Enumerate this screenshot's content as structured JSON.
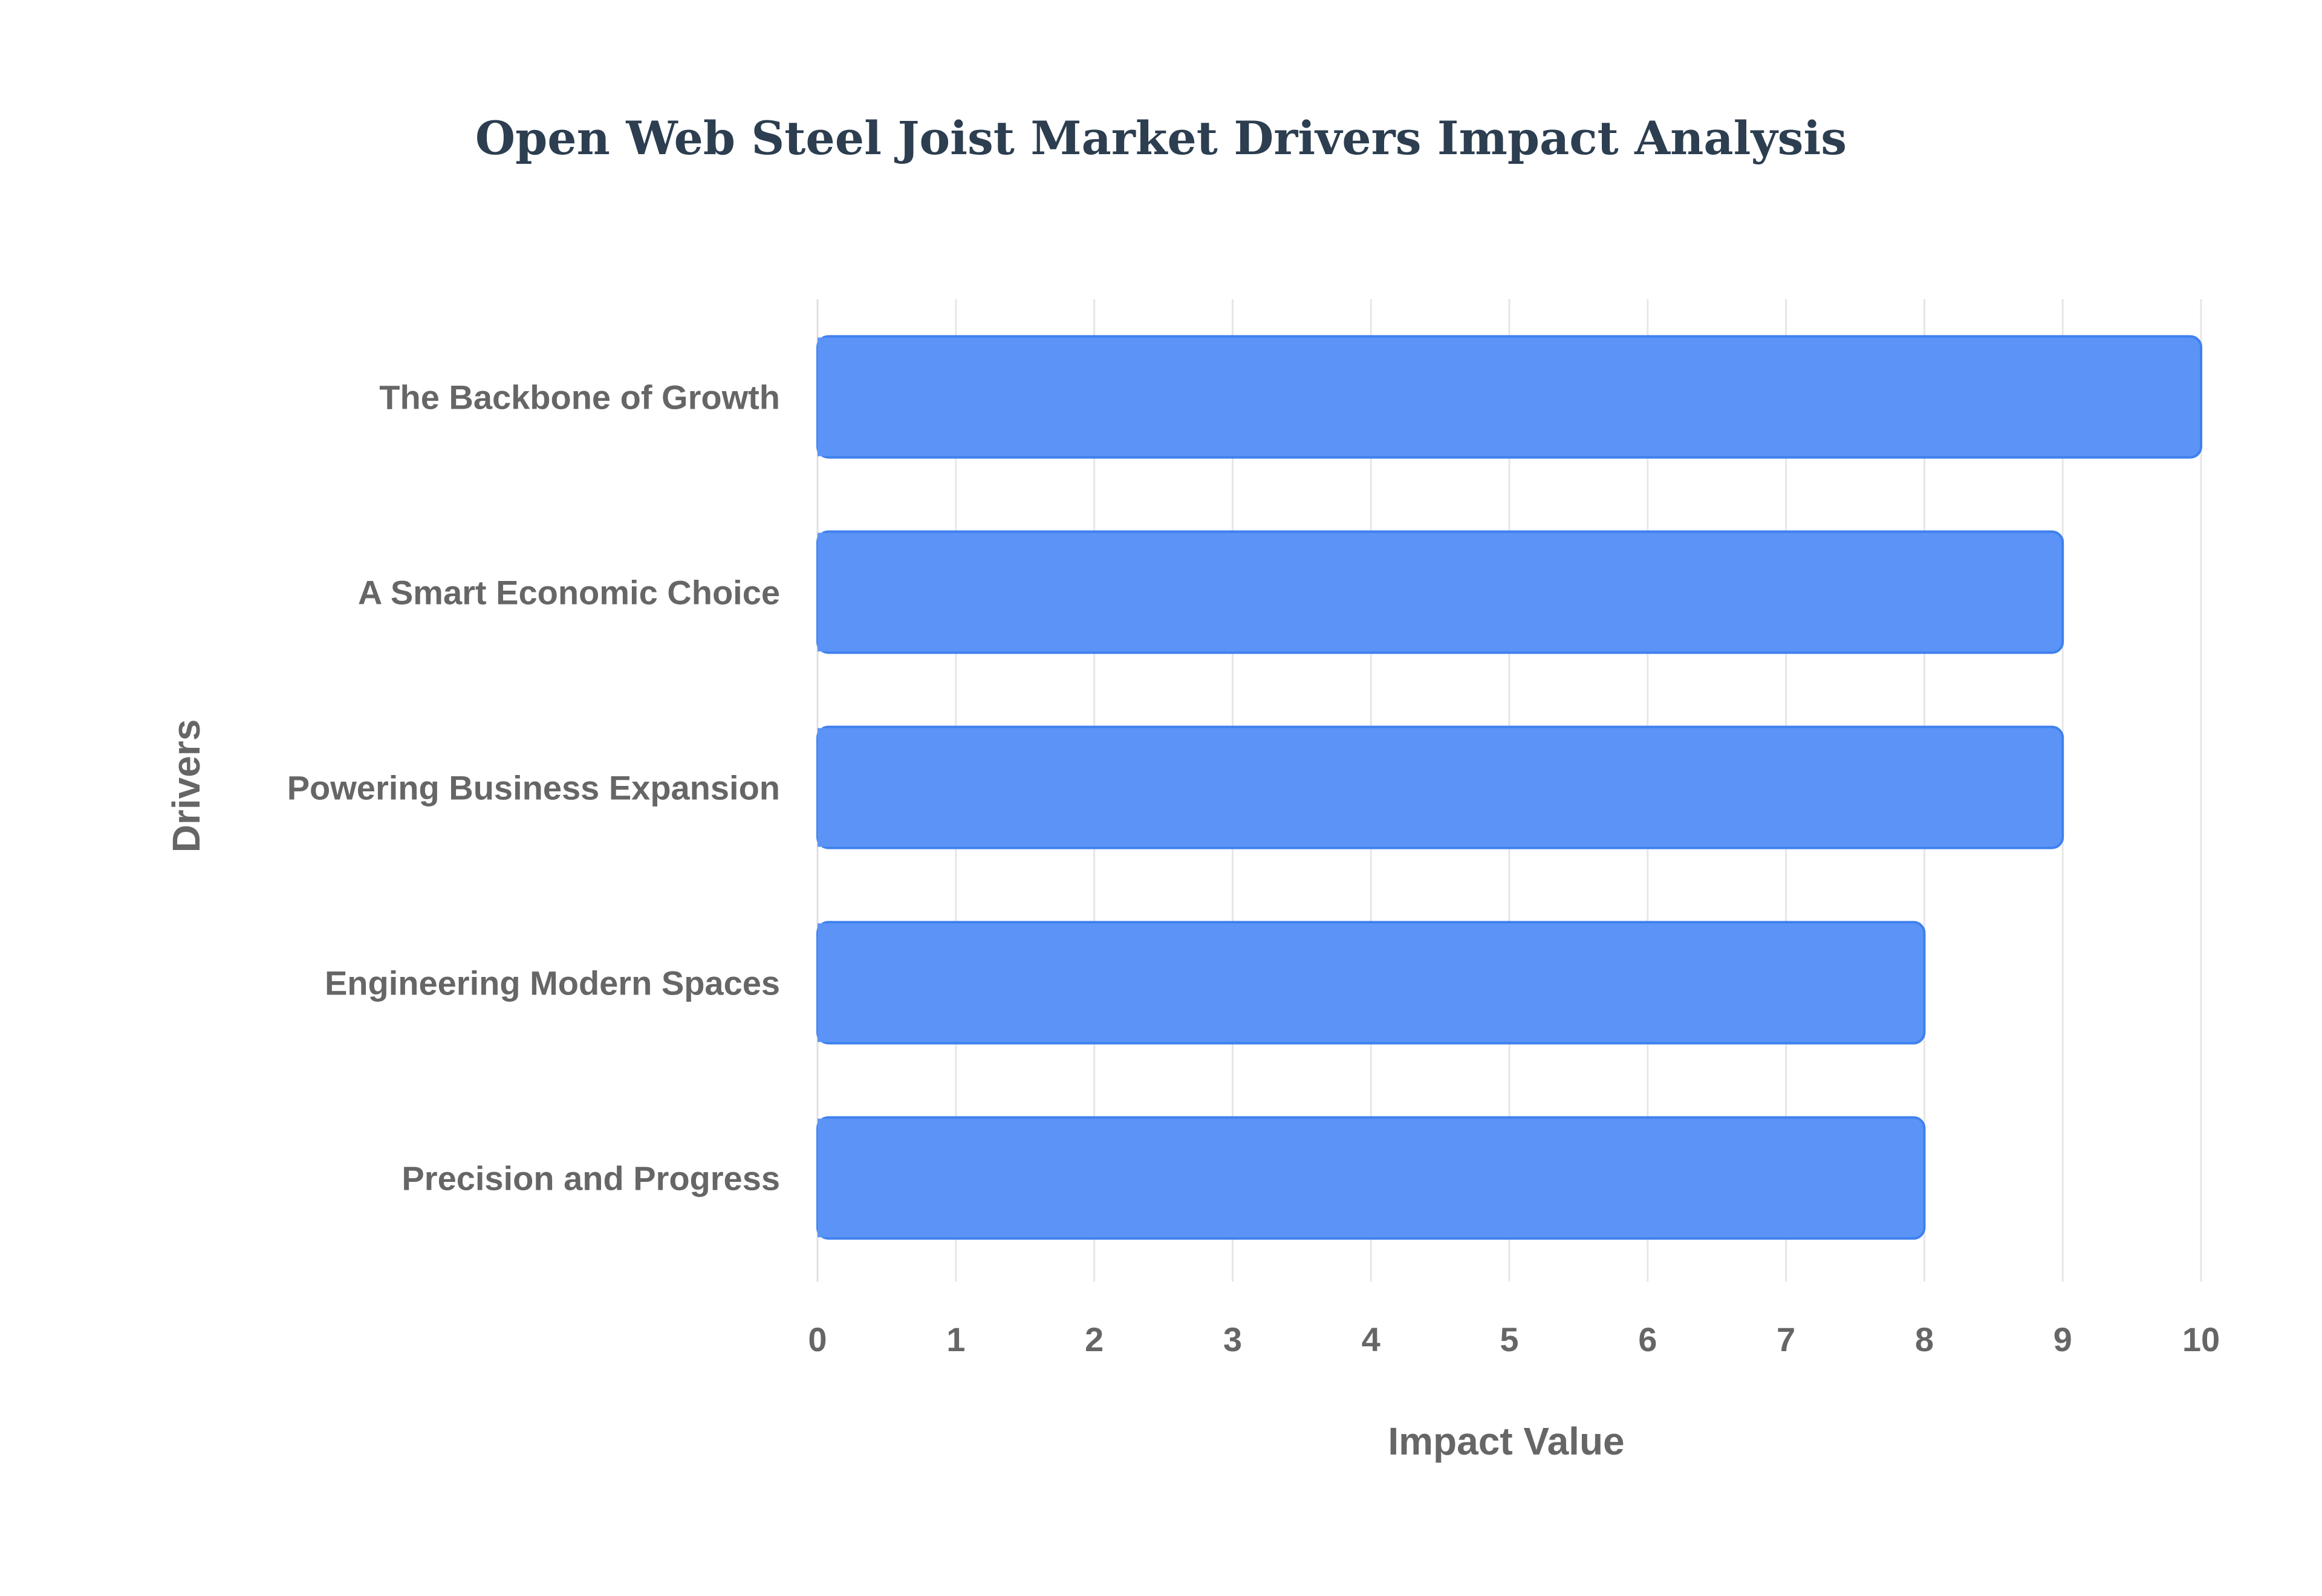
{
  "chart_data": {
    "type": "bar",
    "orientation": "horizontal",
    "title": "Open Web Steel Joist Market Drivers Impact Analysis",
    "xlabel": "Impact Value",
    "ylabel": "Drivers",
    "categories": [
      "The Backbone of Growth",
      "A Smart Economic Choice",
      "Powering Business Expansion",
      "Engineering Modern Spaces",
      "Precision and Progress"
    ],
    "values": [
      10,
      9,
      9,
      8,
      8
    ],
    "xlim": [
      0,
      10
    ],
    "xticks": [
      "0",
      "1",
      "2",
      "3",
      "4",
      "5",
      "6",
      "7",
      "8",
      "9",
      "10"
    ],
    "grid": true,
    "legend": "none",
    "colors": {
      "bar_fill": "#5b94f6",
      "bar_stroke": "#3f80ee",
      "title": "#2c3e50",
      "text": "#666666",
      "grid": "#e6e6e6"
    }
  }
}
